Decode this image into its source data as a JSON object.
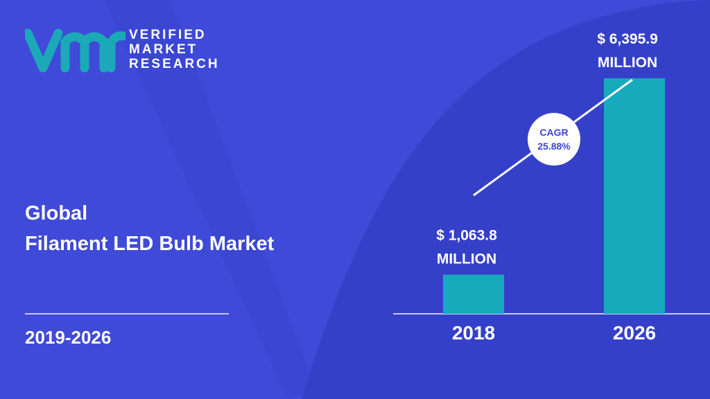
{
  "colors": {
    "background": "#3f4ad8",
    "accent_shape": "#3540c8",
    "bar": "#17a9bc",
    "text": "#ffffff",
    "cagr_text": "#3b45cf",
    "logo_teal": "#1ba9b8"
  },
  "logo": {
    "mark": "vmr",
    "line1": "VERIFIED",
    "line2": "MARKET",
    "line3": "RESEARCH"
  },
  "title": {
    "line1": "Global",
    "line2": "Filament LED Bulb Market"
  },
  "period": "2019-2026",
  "chart_data": {
    "type": "bar",
    "categories": [
      "2018",
      "2026"
    ],
    "values": [
      1063.8,
      6395.9
    ],
    "value_labels": [
      [
        "$ 1,063.8",
        "MILLION"
      ],
      [
        "$ 6,395.9",
        "MILLION"
      ]
    ],
    "cagr": {
      "label": "CAGR",
      "value": "25.88%"
    },
    "xlabel": "",
    "ylabel": "",
    "ylim": [
      0,
      6395.9
    ],
    "grid": false,
    "legend": "none"
  }
}
